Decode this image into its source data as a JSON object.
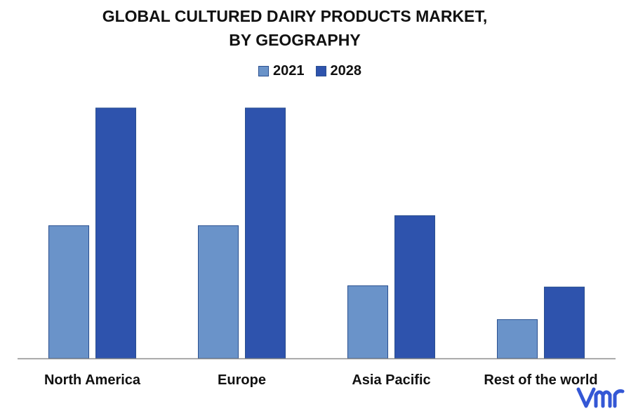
{
  "title_line1": "GLOBAL CULTURED DAIRY PRODUCTS MARKET,",
  "title_line2": "BY GEOGRAPHY",
  "logo_text": "vmr",
  "colors": {
    "series_2021": "#6a93c9",
    "series_2028": "#2e53ad",
    "axis": "#8c8c8c",
    "logo": "#3457d5"
  },
  "chart_data": {
    "type": "bar",
    "title": "GLOBAL CULTURED DAIRY PRODUCTS MARKET, BY GEOGRAPHY",
    "categories": [
      "North America",
      "Europe",
      "Asia Pacific",
      "Rest of the world"
    ],
    "series": [
      {
        "name": "2021",
        "values": [
          53,
          53,
          29,
          15.5
        ]
      },
      {
        "name": "2028",
        "values": [
          100,
          100,
          57,
          28.5
        ]
      }
    ],
    "ylim": [
      0,
      100
    ],
    "xlabel": "",
    "ylabel": "",
    "grid": false,
    "legend": "top-center"
  }
}
